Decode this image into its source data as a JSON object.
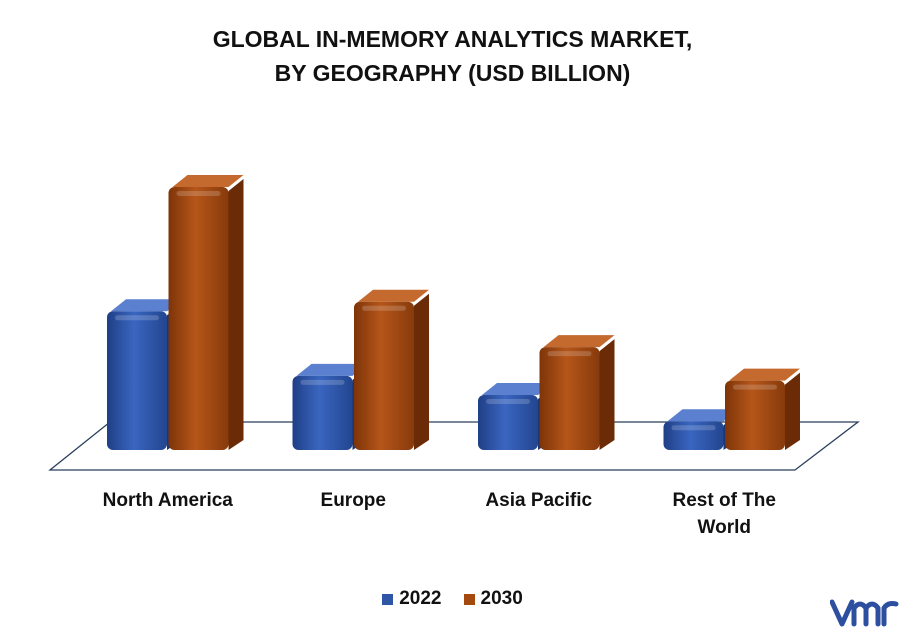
{
  "title_lines": [
    "GLOBAL IN-MEMORY ANALYTICS MARKET,",
    "BY GEOGRAPHY (USD BILLION)"
  ],
  "colors": {
    "2022": "#2f56a6",
    "2030": "#a44a0f"
  },
  "logo_text": "vmr",
  "chart_data": {
    "type": "bar",
    "title": "GLOBAL IN-MEMORY ANALYTICS MARKET, BY GEOGRAPHY (USD BILLION)",
    "categories": [
      "North America",
      "Europe",
      "Asia Pacific",
      "Rest of The World"
    ],
    "category_lines": [
      [
        "North America"
      ],
      [
        "Europe"
      ],
      [
        "Asia Pacific"
      ],
      [
        "Rest of The",
        "World"
      ]
    ],
    "series": [
      {
        "name": "2022",
        "values": [
          5.8,
          3.1,
          2.3,
          1.2
        ]
      },
      {
        "name": "2030",
        "values": [
          11.0,
          6.2,
          4.3,
          2.9
        ]
      }
    ],
    "ylim": [
      0,
      11.5
    ],
    "grid": false,
    "legend_position": "bottom-center"
  }
}
